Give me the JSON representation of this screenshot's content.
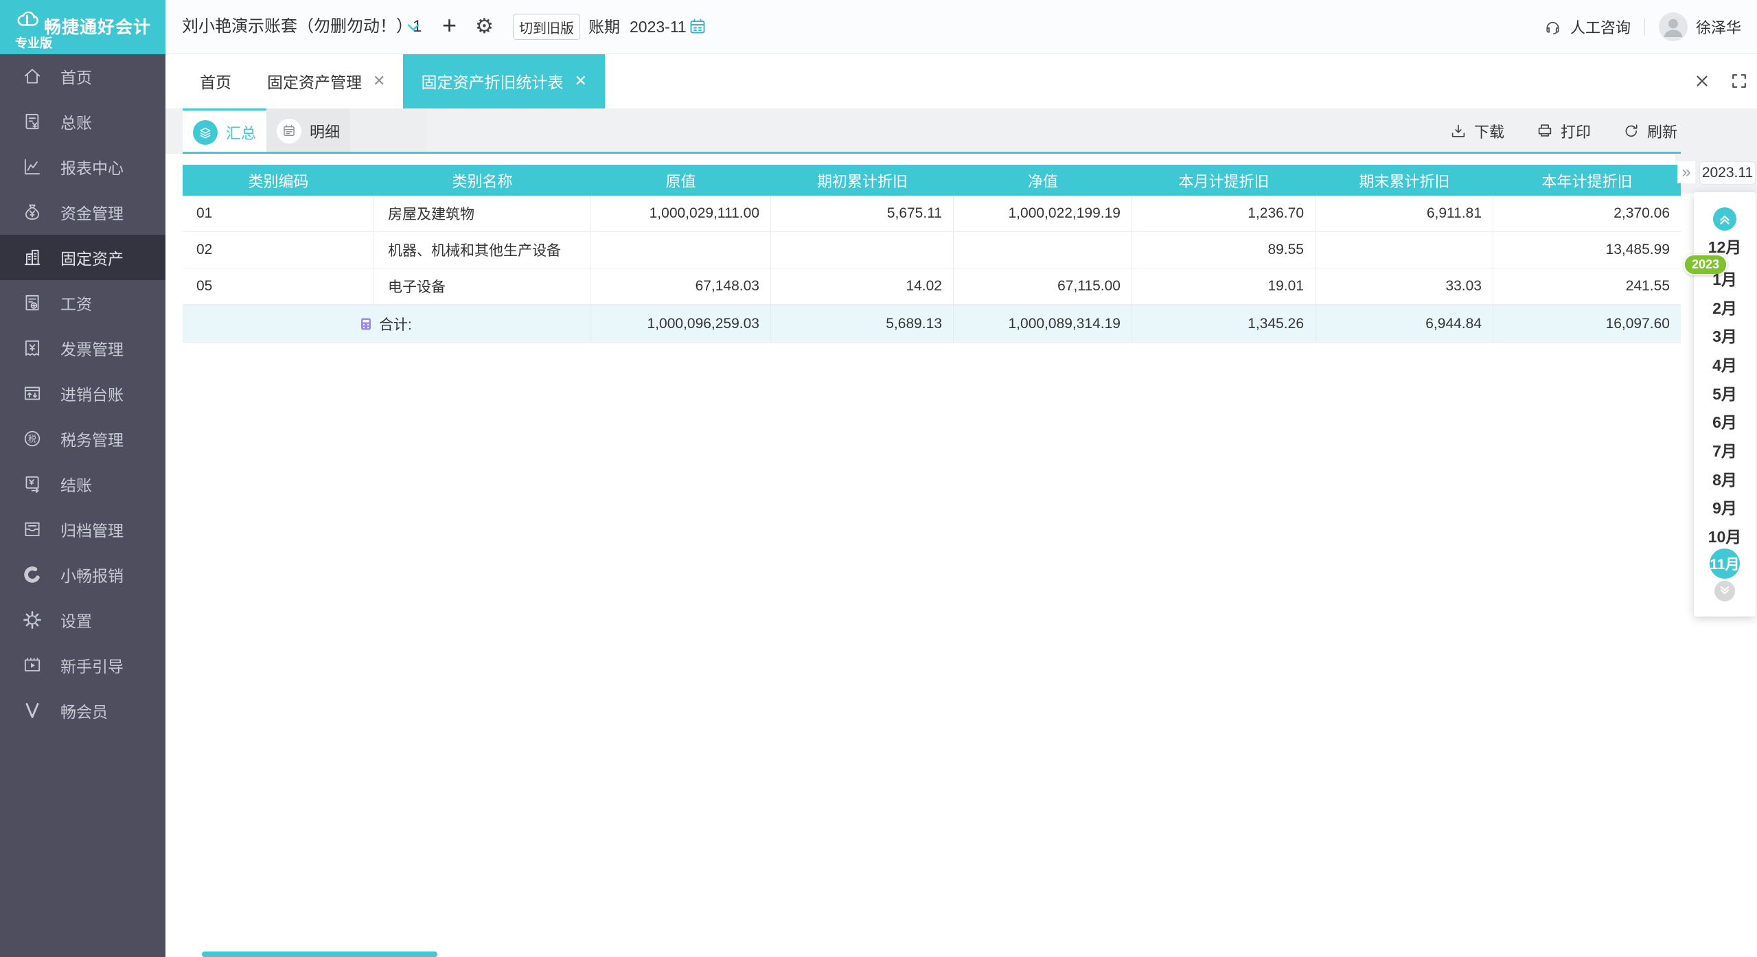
{
  "app": {
    "brand": "畅捷通好会计",
    "edition": "专业版"
  },
  "topbar": {
    "account_name": "刘小艳演示账套（勿删勿动！）1",
    "plus_glyph": "+",
    "gear_glyph": "⚙",
    "switch_old_label": "切到旧版",
    "period_label": "账期",
    "period_value": "2023-11",
    "support_label": "人工咨询",
    "username": "徐泽华"
  },
  "tabs": [
    {
      "id": "home",
      "label": "首页",
      "active": false,
      "closable": false
    },
    {
      "id": "fixed-assets-management",
      "label": "固定资产管理",
      "active": false,
      "closable": true
    },
    {
      "id": "depreciation-report",
      "label": "固定资产折旧统计表",
      "active": true,
      "closable": true
    }
  ],
  "toolbar": {
    "view_tabs": [
      {
        "id": "summary",
        "label": "汇总",
        "icon": "layers-icon",
        "active": true
      },
      {
        "id": "detail",
        "label": "明细",
        "icon": "detail-icon",
        "active": false
      }
    ],
    "actions": [
      {
        "id": "download",
        "label": "下载",
        "icon": "download-icon"
      },
      {
        "id": "print",
        "label": "打印",
        "icon": "print-icon"
      },
      {
        "id": "refresh",
        "label": "刷新",
        "icon": "refresh-icon"
      }
    ]
  },
  "sidebar": {
    "items": [
      {
        "id": "home",
        "label": "首页",
        "icon": "home-icon",
        "selected": false
      },
      {
        "id": "general-ledger",
        "label": "总账",
        "icon": "ledger-icon",
        "selected": false
      },
      {
        "id": "report-center",
        "label": "报表中心",
        "icon": "report-icon",
        "selected": false
      },
      {
        "id": "funds-management",
        "label": "资金管理",
        "icon": "funds-icon",
        "selected": false
      },
      {
        "id": "fixed-assets",
        "label": "固定资产",
        "icon": "fixed-assets-icon",
        "selected": true
      },
      {
        "id": "salary",
        "label": "工资",
        "icon": "salary-icon",
        "selected": false
      },
      {
        "id": "invoice-management",
        "label": "发票管理",
        "icon": "invoice-icon",
        "selected": false
      },
      {
        "id": "purchase-sales-ledger",
        "label": "进销台账",
        "icon": "purchase-sales-icon",
        "selected": false
      },
      {
        "id": "tax-management",
        "label": "税务管理",
        "icon": "tax-icon",
        "selected": false
      },
      {
        "id": "closing",
        "label": "结账",
        "icon": "closing-icon",
        "selected": false
      },
      {
        "id": "archive-management",
        "label": "归档管理",
        "icon": "archive-icon",
        "selected": false
      },
      {
        "id": "xiaochang-expense",
        "label": "小畅报销",
        "icon": "expense-icon",
        "selected": false
      },
      {
        "id": "settings",
        "label": "设置",
        "icon": "settings-icon",
        "selected": false
      },
      {
        "id": "beginner-guide",
        "label": "新手引导",
        "icon": "guide-icon",
        "selected": false
      },
      {
        "id": "chang-member",
        "label": "畅会员",
        "icon": "member-icon",
        "selected": false
      }
    ]
  },
  "table": {
    "columns": [
      "类别编码",
      "类别名称",
      "原值",
      "期初累计折旧",
      "净值",
      "本月计提折旧",
      "期末累计折旧",
      "本年计提折旧"
    ],
    "rows": [
      [
        "01",
        "房屋及建筑物",
        "1,000,029,111.00",
        "5,675.11",
        "1,000,022,199.19",
        "1,236.70",
        "6,911.81",
        "2,370.06"
      ],
      [
        "02",
        "机器、机械和其他生产设备",
        "",
        "",
        "",
        "89.55",
        "",
        "13,485.99"
      ],
      [
        "05",
        "电子设备",
        "67,148.03",
        "14.02",
        "67,115.00",
        "19.01",
        "33.03",
        "241.55"
      ]
    ],
    "total_label": "合计:",
    "total_values": [
      "1,000,096,259.03",
      "5,689.13",
      "1,000,089,314.19",
      "1,345.26",
      "6,944.84",
      "16,097.60"
    ]
  },
  "period_panel": {
    "current": "2023.11",
    "collapse_glyph": "»",
    "year_badge": "2023",
    "months_top": [
      "12月"
    ],
    "months_mid": [
      "1月",
      "2月",
      "3月",
      "4月",
      "5月",
      "6月",
      "7月",
      "8月",
      "9月",
      "10月"
    ],
    "selected_month": "11月"
  },
  "colors": {
    "accent": "#3ec9d5",
    "sidebar_bg": "#4e4e5e",
    "sidebar_selected_bg": "#343440",
    "header_teal": "#3dc8d4",
    "active_tab_teal": "#41c8d5",
    "total_row_bg": "#e9f7fb",
    "badge_green": "#7fc131",
    "total_icon_purple": "#9b8ce8"
  }
}
